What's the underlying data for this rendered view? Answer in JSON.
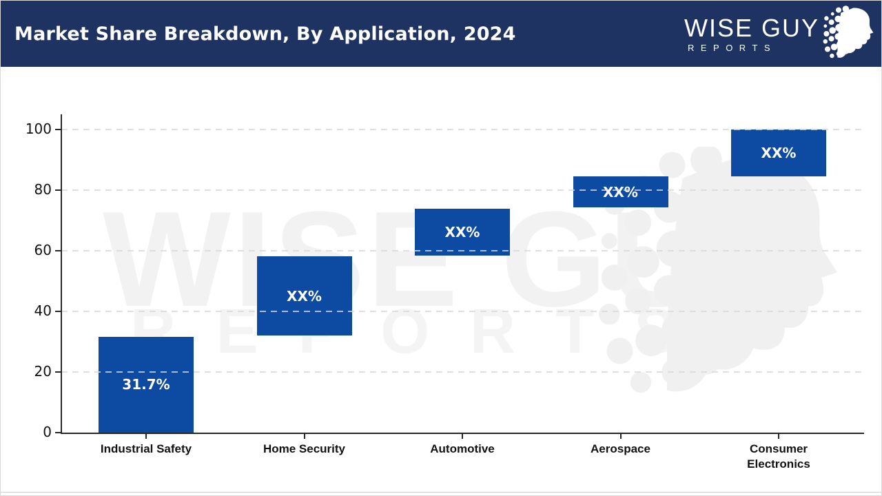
{
  "header": {
    "title": "Market Share Breakdown, By Application, 2024",
    "logo": {
      "line1": "WISE GUY",
      "line2": "REPORTS"
    }
  },
  "watermark": {
    "line1": "WISE GUY",
    "line2": "REPORTS"
  },
  "colors": {
    "header_bg": "#1e3362",
    "bar_fill": "#0d4aa1",
    "bar_label_text": "#ffffff",
    "gridline": "#d9d9d9",
    "axis": "#262626",
    "tick_text": "#111111"
  },
  "chart_data": {
    "type": "bar",
    "variant": "floating-range-waterfall",
    "title": "Market Share Breakdown, By Application, 2024",
    "categories": [
      "Industrial Safety",
      "Home Security",
      "Automotive",
      "Aerospace",
      "Consumer Electronics"
    ],
    "bars": [
      {
        "category": "Industrial Safety",
        "start": 0,
        "end": 31.7,
        "label": "31.7%"
      },
      {
        "category": "Home Security",
        "start": 32,
        "end": 58.2,
        "label": "XX%"
      },
      {
        "category": "Automotive",
        "start": 58.4,
        "end": 73.9,
        "label": "XX%"
      },
      {
        "category": "Aerospace",
        "start": 74.3,
        "end": 84.5,
        "label": "XX%"
      },
      {
        "category": "Consumer Electronics",
        "start": 84.5,
        "end": 100,
        "label": "XX%"
      }
    ],
    "yticks": [
      0,
      20,
      40,
      60,
      80,
      100
    ],
    "ylim": [
      0,
      105
    ],
    "xlabel": "",
    "ylabel": "",
    "grid": "dashed-horizontal",
    "legend": "none"
  }
}
